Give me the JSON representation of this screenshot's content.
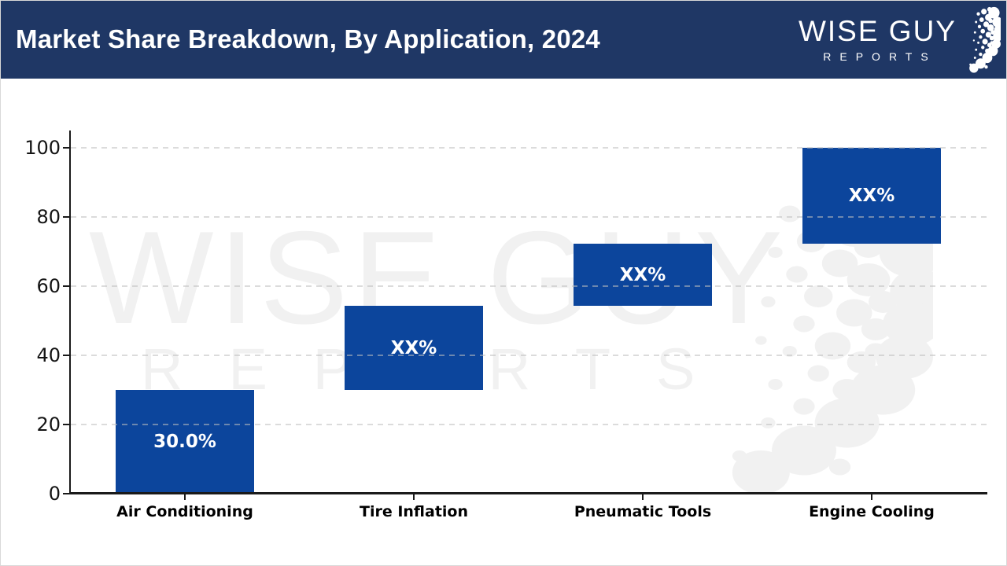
{
  "header": {
    "title": "Market Share Breakdown, By Application, 2024",
    "logo": {
      "line1": "WISE GUY",
      "line2": "REPORTS"
    }
  },
  "watermark": {
    "line1": "WISE GUY",
    "line2": "REPORTS"
  },
  "chart_data": {
    "type": "bar",
    "variant": "floating-segment-waterfall",
    "title": "Market Share Breakdown, By Application, 2024",
    "categories": [
      "Air Conditioning",
      "Tire Inflation",
      "Pneumatic Tools",
      "Engine Cooling"
    ],
    "segments": [
      {
        "category": "Air Conditioning",
        "start": 0,
        "end": 30,
        "label": "30.0%"
      },
      {
        "category": "Tire Inflation",
        "start": 30,
        "end": 54.3,
        "label": "XX%"
      },
      {
        "category": "Pneumatic Tools",
        "start": 54.3,
        "end": 72.3,
        "label": "XX%"
      },
      {
        "category": "Engine Cooling",
        "start": 72.3,
        "end": 100,
        "label": "XX%"
      }
    ],
    "xlabel": "",
    "ylabel": "",
    "yticks": [
      0,
      20,
      40,
      60,
      80,
      100
    ],
    "ylim": [
      0,
      104
    ],
    "grid": "horizontal-dashed",
    "legend": "none",
    "bar_color": "#0c459c",
    "bar_label_color": "#ffffff"
  },
  "colors": {
    "headerBg": "#1f3765",
    "headerText": "#ffffff",
    "bar": "#0c459c",
    "axis": "#1a1a1a",
    "grid": "#e2e2e2",
    "watermark": "#f1f1f1",
    "figureBorder": "#d9d9d9"
  }
}
